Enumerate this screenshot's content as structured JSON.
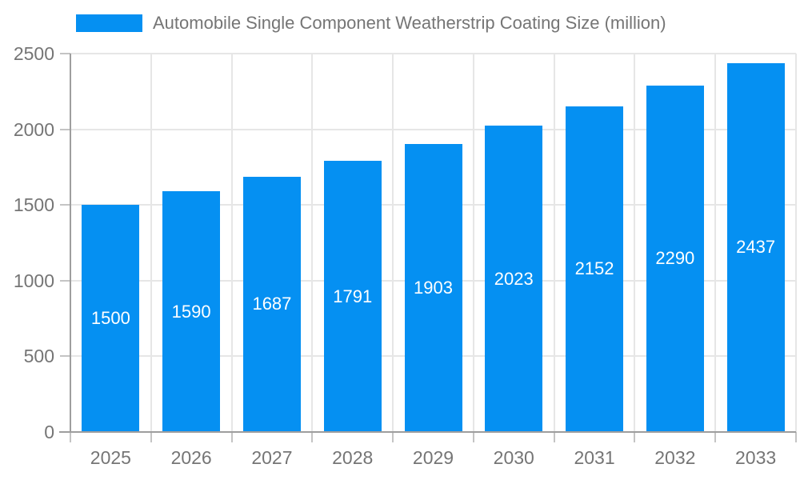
{
  "legend": {
    "label": "Automobile Single Component Weatherstrip Coating Size (million)"
  },
  "chart_data": {
    "type": "bar",
    "title": "Automobile Single Component Weatherstrip Coating Size (million)",
    "categories": [
      "2025",
      "2026",
      "2027",
      "2028",
      "2029",
      "2030",
      "2031",
      "2032",
      "2033"
    ],
    "values": [
      1500,
      1590,
      1687,
      1791,
      1903,
      2023,
      2152,
      2290,
      2437
    ],
    "xlabel": "",
    "ylabel": "",
    "ylim": [
      0,
      2500
    ],
    "yticks": [
      0,
      500,
      1000,
      1500,
      2000,
      2500
    ],
    "grid": true,
    "legend_position": "top-left",
    "value_labels": "inside-center",
    "bar_color": "#0590f2",
    "grid_color": "#e6e6e6",
    "axis_color": "#9e9e9e",
    "tick_color": "#c4c4c4",
    "tick_label_color": "#757575",
    "value_label_color": "#ffffff"
  }
}
